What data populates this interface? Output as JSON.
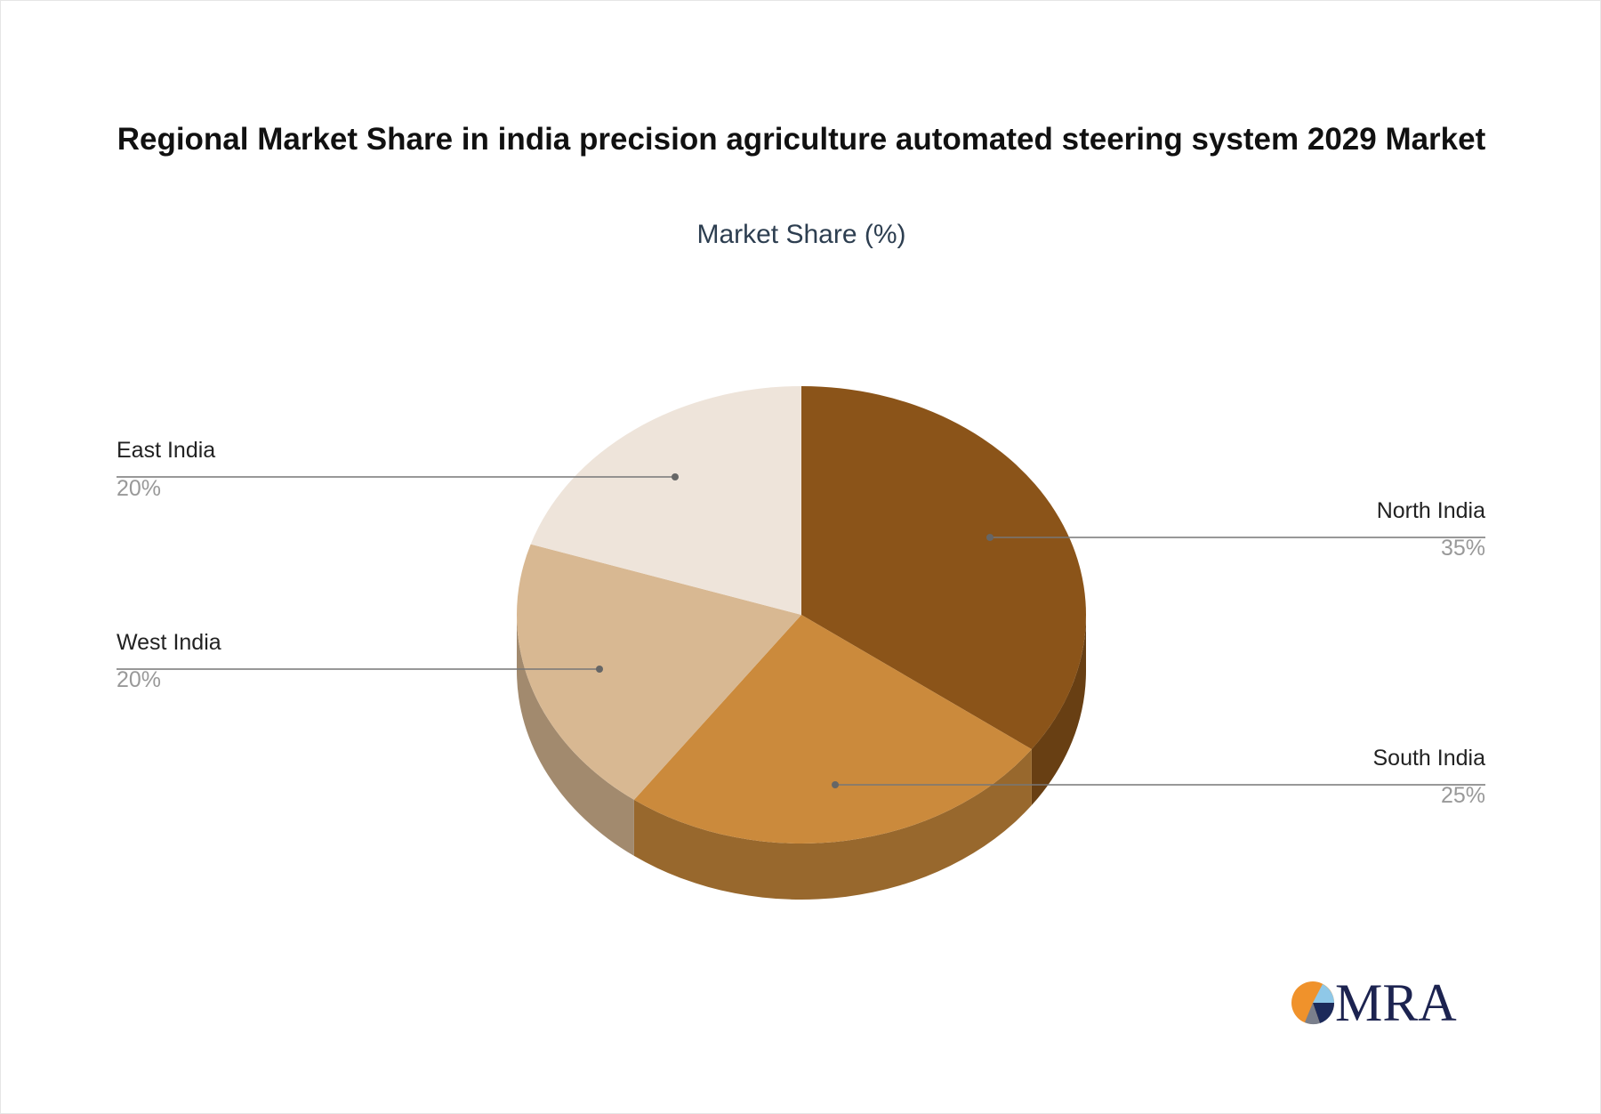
{
  "chart_data": {
    "type": "pie3d",
    "title": "Regional Market Share in india precision agriculture automated steering system 2029 Market",
    "subtitle": "Market Share (%)",
    "categories": [
      "North India",
      "South India",
      "West India",
      "East India"
    ],
    "values": [
      35,
      25,
      20,
      20
    ],
    "value_labels": [
      "35%",
      "25%",
      "20%",
      "20%"
    ],
    "colors": [
      "#8b5419",
      "#cb8a3c",
      "#d8b892",
      "#eee4da"
    ]
  },
  "logo": {
    "text": "MRA"
  }
}
